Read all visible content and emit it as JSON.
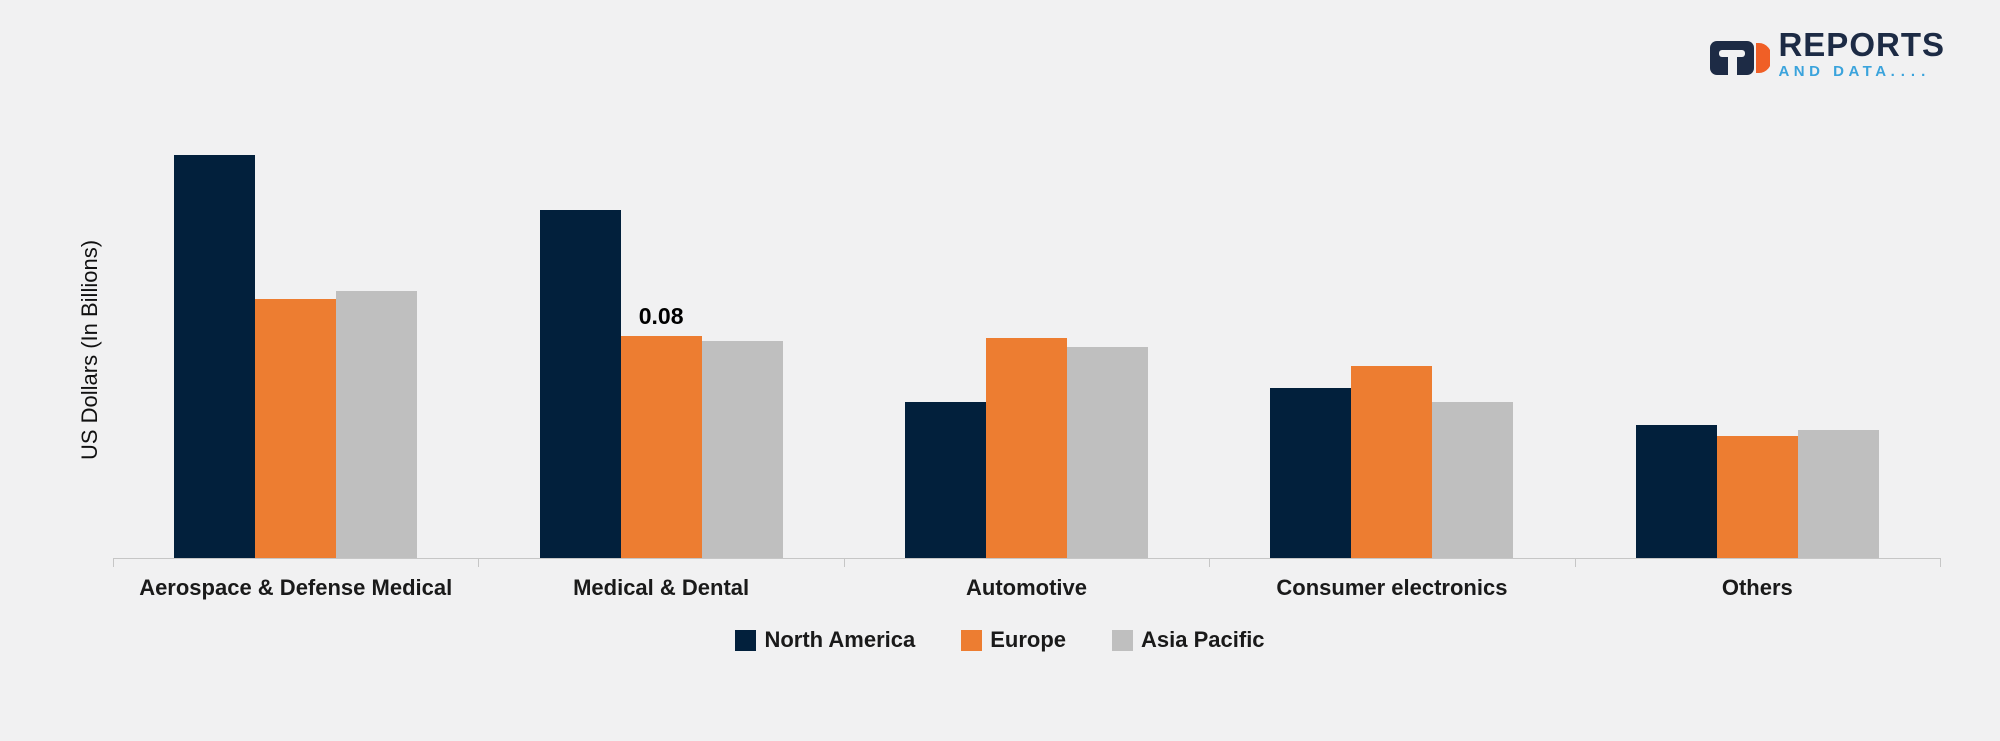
{
  "page": {
    "background": "#f1f1f2"
  },
  "logo": {
    "title": "REPORTS",
    "subtitle": "AND DATA",
    "dots": "....",
    "colors": {
      "navy": "#1d2b45",
      "orange": "#f05f26",
      "blue": "#3aa3dc"
    }
  },
  "chart_data": {
    "type": "bar",
    "title": "",
    "xlabel": "",
    "ylabel": "US Dollars (In Billions)",
    "categories": [
      "Aerospace & Defense Medical",
      "Medical & Dental",
      "Automotive",
      "Consumer electronics",
      "Others"
    ],
    "series": [
      {
        "name": "North America",
        "color": "#02203c",
        "values": [
          0.145,
          0.125,
          0.056,
          0.061,
          0.048
        ]
      },
      {
        "name": "Europe",
        "color": "#ed7d31",
        "values": [
          0.093,
          0.08,
          0.079,
          0.069,
          0.044
        ]
      },
      {
        "name": "Asia Pacific",
        "color": "#bfbfbf",
        "values": [
          0.096,
          0.078,
          0.076,
          0.056,
          0.046
        ]
      }
    ],
    "ylim": [
      0,
      0.16
    ],
    "grid": false,
    "y_tick_labels": [],
    "legend_position": "bottom",
    "data_labels": [
      {
        "series_index": 1,
        "category_index": 1,
        "text": "0.08"
      }
    ]
  }
}
